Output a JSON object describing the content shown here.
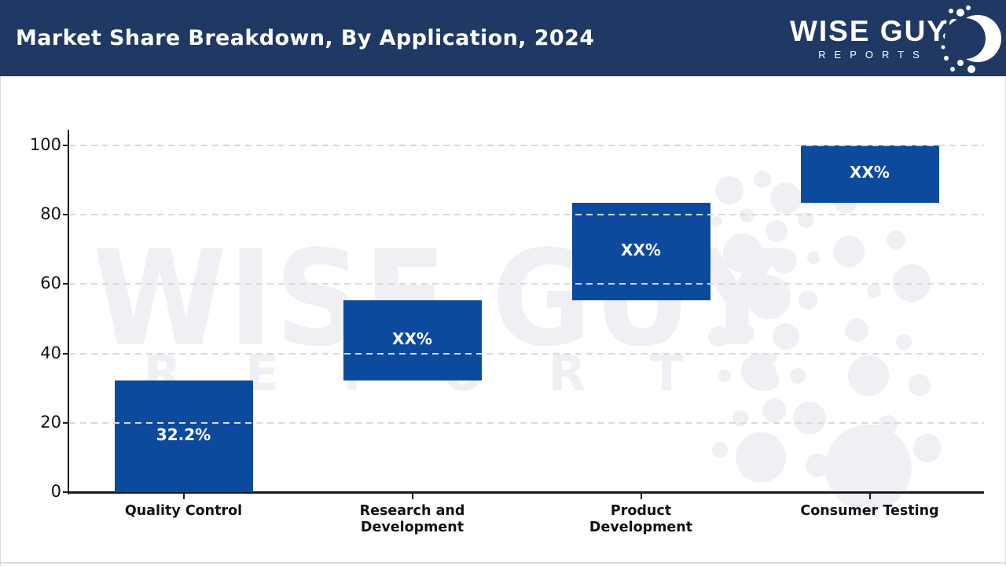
{
  "header": {
    "title": "Market Share Breakdown, By Application, 2024",
    "logo": {
      "line1": "WISE GUY",
      "line2": "REPORTS"
    }
  },
  "watermark": {
    "line1": "WISE GUY",
    "line2": "R E P O R T S"
  },
  "colors": {
    "header_bg": "#1f3864",
    "bar": "#0c4a9e",
    "axis": "#1a1a1a",
    "grid": "#d9d9d9",
    "bar_label": "#ffffff",
    "tick_label": "#111111",
    "watermark": "#eef0f3",
    "page_border": "#dcdcdc"
  },
  "chart_data": {
    "type": "bar",
    "subtype": "waterfall",
    "title": "Market Share Breakdown, By Application, 2024",
    "xlabel": "",
    "ylabel": "",
    "categories": [
      "Quality Control",
      "Research and\nDevelopment",
      "Product\nDevelopment",
      "Consumer Testing"
    ],
    "series": [
      {
        "name": "Market share (%)",
        "segments": [
          {
            "category": "Quality Control",
            "start": 0,
            "end": 32.2,
            "label": "32.2%"
          },
          {
            "category": "Research and Development",
            "start": 32.2,
            "end": 55.4,
            "label": "XX%"
          },
          {
            "category": "Product Development",
            "start": 55.4,
            "end": 83.5,
            "label": "XX%"
          },
          {
            "category": "Consumer Testing",
            "start": 83.5,
            "end": 100,
            "label": "XX%"
          }
        ]
      }
    ],
    "yticks": [
      0,
      20,
      40,
      60,
      80,
      100
    ],
    "ylim": [
      0,
      105
    ],
    "grid": "horizontal-dashed-over-bars",
    "legend": "none"
  }
}
